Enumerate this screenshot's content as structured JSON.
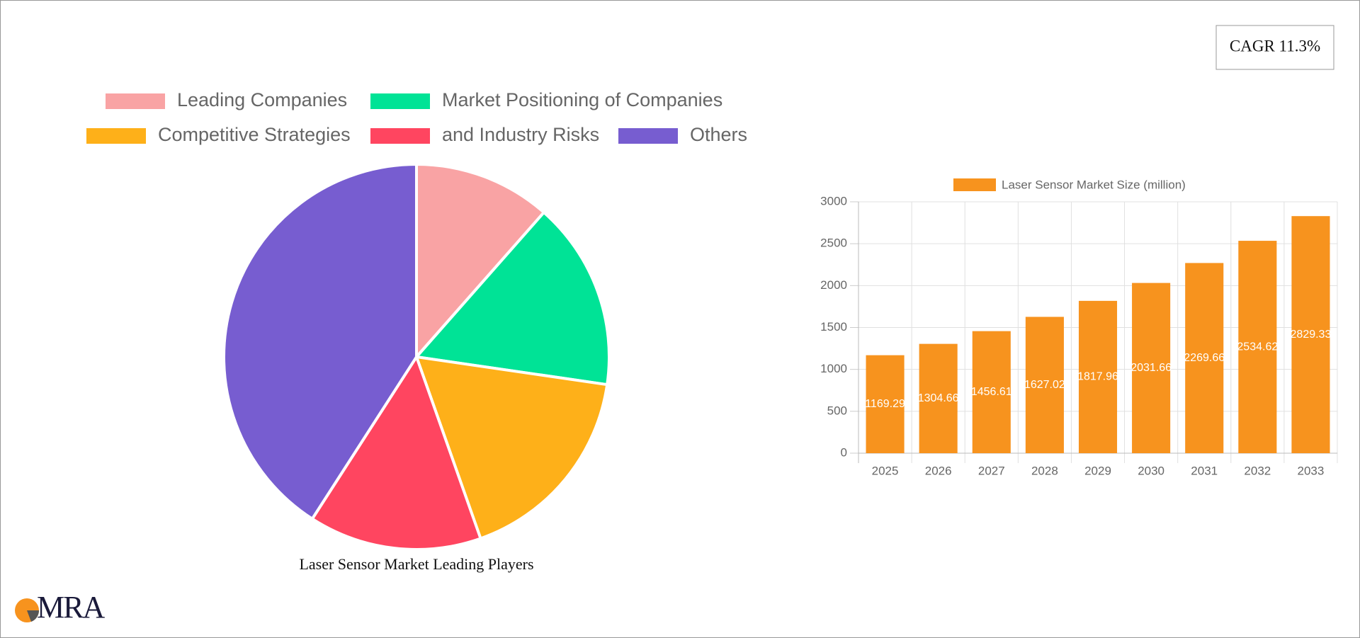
{
  "cagr": "CAGR 11.3%",
  "logo": "MRA",
  "chart_data": [
    {
      "type": "pie",
      "title": "Laser Sensor Market Leading Players",
      "categories": [
        "Leading Companies",
        "Market Positioning of Companies",
        "Competitive Strategies",
        "and Industry Risks",
        "Others"
      ],
      "values": [
        11.5,
        15.8,
        17.3,
        14.5,
        40.9
      ],
      "colors": [
        "#f9a3a4",
        "#00e396",
        "#feb019",
        "#ff4560",
        "#775dd0"
      ]
    },
    {
      "type": "bar",
      "categories": [
        "2025",
        "2026",
        "2027",
        "2028",
        "2029",
        "2030",
        "2031",
        "2032",
        "2033"
      ],
      "series": [
        {
          "name": "Laser Sensor Market Size (million)",
          "color": "#f7931e",
          "values": [
            1169.29,
            1304.66,
            1456.61,
            1627.02,
            1817.96,
            2031.66,
            2269.66,
            2534.62,
            2829.33
          ]
        }
      ],
      "ylim": [
        0,
        3000
      ],
      "yticks": [
        0,
        500,
        1000,
        1500,
        2000,
        2500,
        3000
      ],
      "grid": true
    }
  ]
}
